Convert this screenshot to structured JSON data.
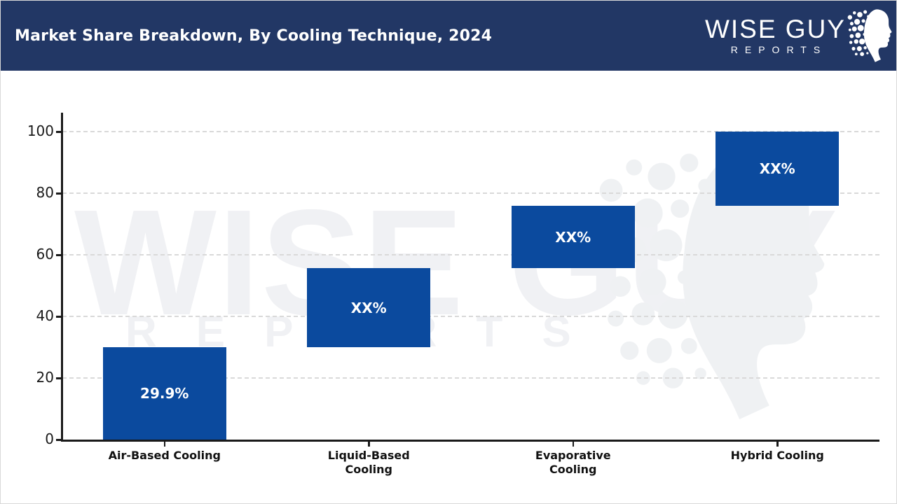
{
  "header": {
    "title": "Market Share Breakdown, By Cooling Technique, 2024",
    "logo": {
      "line1": "WISE GUY",
      "line2": "REPORTS"
    }
  },
  "watermark": {
    "line1": "WISE GUY",
    "line2": "REPORTS"
  },
  "chart_data": {
    "type": "bar",
    "variant": "floating-waterfall",
    "title": "Market Share Breakdown, By Cooling Technique, 2024",
    "categories": [
      "Air-Based Cooling",
      "Liquid-Based Cooling",
      "Evaporative Cooling",
      "Hybrid Cooling"
    ],
    "category_display": [
      "Air-Based Cooling",
      "Liquid-Based\nCooling",
      "Evaporative\nCooling",
      "Hybrid Cooling"
    ],
    "segments": [
      {
        "category": "Air-Based Cooling",
        "start": 0,
        "end": 29.9,
        "label": "29.9%"
      },
      {
        "category": "Liquid-Based Cooling",
        "start": 29.9,
        "end": 55.6,
        "label": "XX%"
      },
      {
        "category": "Evaporative Cooling",
        "start": 55.6,
        "end": 75.9,
        "label": "XX%"
      },
      {
        "category": "Hybrid Cooling",
        "start": 75.9,
        "end": 100,
        "label": "XX%"
      }
    ],
    "xlabel": "",
    "ylabel": "",
    "ylim": [
      0,
      105
    ],
    "yticks": [
      0,
      20,
      40,
      60,
      80,
      100
    ],
    "grid": "horizontal-dashed",
    "legend": "none",
    "colors": {
      "bar": "#0b4a9e",
      "bar_label": "#ffffff",
      "header_bg": "#223765",
      "axis": "#1a1a1a",
      "gridline": "#d9d9d9",
      "tick_label": "#1a1a1a",
      "category_label": "#111111",
      "watermark": "#f0f1f4",
      "page_border": "#d9d9d9"
    }
  }
}
